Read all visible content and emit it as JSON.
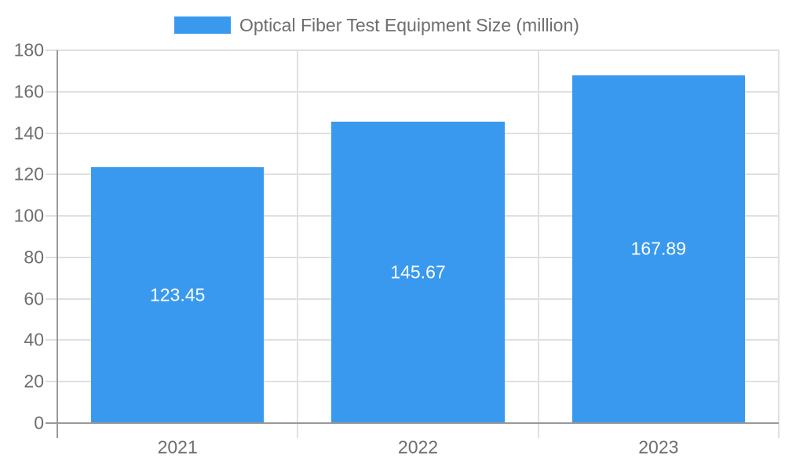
{
  "legend": {
    "label": "Optical Fiber Test Equipment Size (million)"
  },
  "chart_data": {
    "type": "bar",
    "title": "Optical Fiber Test Equipment Size (million)",
    "series_name": "Optical Fiber Test Equipment Size (million)",
    "categories": [
      "2021",
      "2022",
      "2023"
    ],
    "values": [
      123.45,
      145.67,
      167.89
    ],
    "value_labels": [
      "123.45",
      "145.67",
      "167.89"
    ],
    "ylabel": "",
    "xlabel": "",
    "ylim": [
      0,
      180
    ],
    "ytick_step": 20,
    "ytick_labels": [
      "0",
      "20",
      "40",
      "60",
      "80",
      "100",
      "120",
      "140",
      "160",
      "180"
    ],
    "grid": true,
    "legend_position": "top-center",
    "value_label_position": "inside-middle",
    "bar_color": "#3999EE",
    "value_label_color": "#ffffff",
    "axis_color": "#999999",
    "grid_color": "#e0e0e0",
    "text_color": "#6e6e6e",
    "background_color": "#ffffff"
  }
}
